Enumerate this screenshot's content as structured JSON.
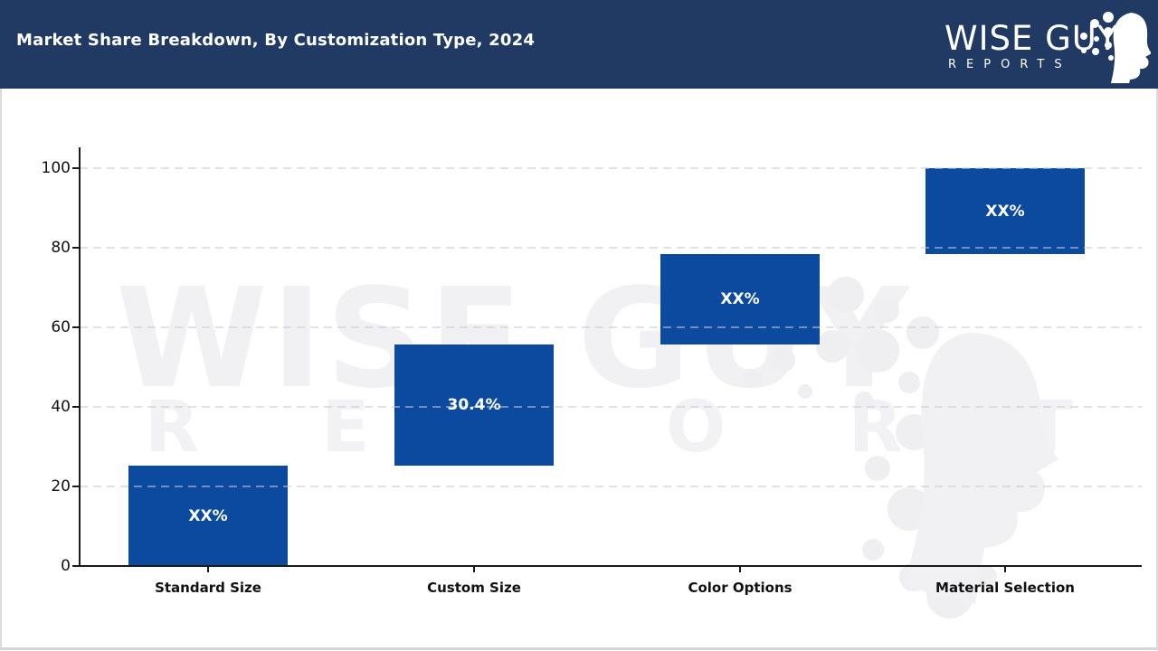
{
  "header": {
    "title": "Market Share Breakdown, By Customization Type, 2024",
    "logo": {
      "line1": "WISE GUY",
      "line2": "REPORTS"
    }
  },
  "watermark": {
    "line1": "WISE GUY",
    "line2": "REPORTS"
  },
  "colors": {
    "header_bg": "#213A64",
    "bar": "#0B4A9F",
    "axis": "#1A1A1A",
    "gridline": "#DCDEE4",
    "watermark": "#F1F1F3"
  },
  "chart_data": {
    "type": "bar",
    "subtype": "waterfall",
    "title": "Market Share Breakdown, By Customization Type, 2024",
    "xlabel": "",
    "ylabel": "",
    "categories": [
      "Standard Size",
      "Custom Size",
      "Color Options",
      "Material Selection"
    ],
    "segments": [
      {
        "category": "Standard Size",
        "start": 0,
        "end": 25.2,
        "label": "XX%"
      },
      {
        "category": "Custom Size",
        "start": 25.2,
        "end": 55.6,
        "label": "30.4%"
      },
      {
        "category": "Color Options",
        "start": 55.6,
        "end": 78.3,
        "label": "XX%"
      },
      {
        "category": "Material Selection",
        "start": 78.3,
        "end": 100,
        "label": "XX%"
      }
    ],
    "yticks": [
      0,
      20,
      40,
      60,
      80,
      100
    ],
    "ylim": [
      0,
      105
    ],
    "grid": "horizontal-dashed",
    "legend": "none",
    "bar_color": "#0B4A9F"
  }
}
